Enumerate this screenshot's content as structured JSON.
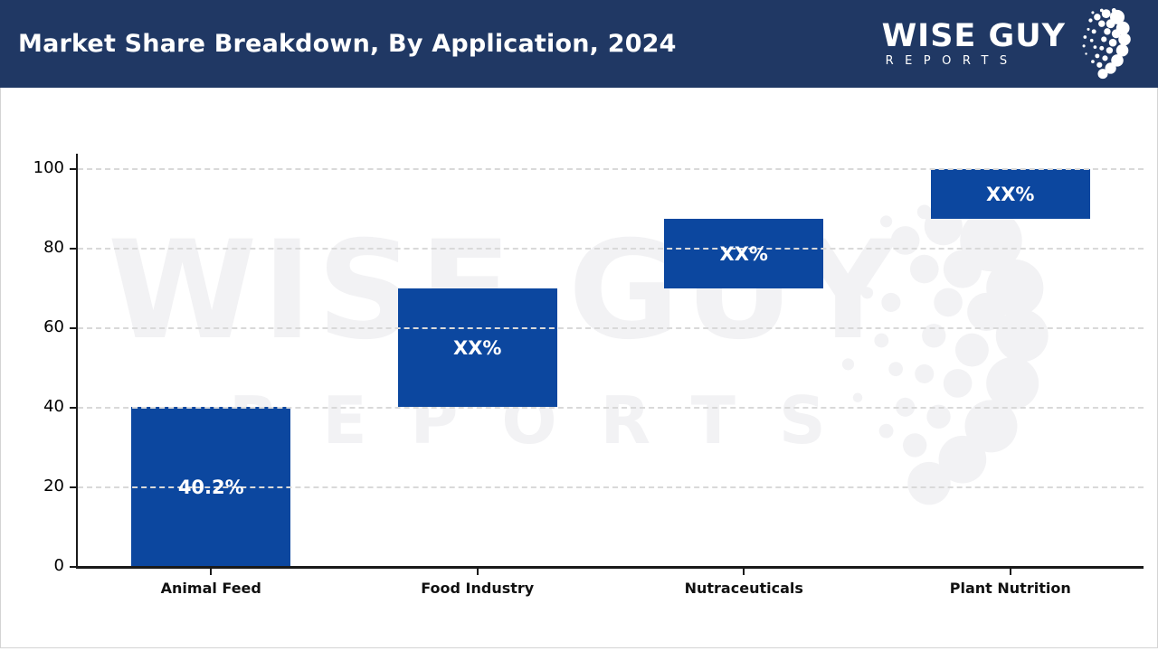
{
  "header": {
    "title": "Market Share Breakdown, By Application, 2024",
    "logo": {
      "line1": "WISE GUY",
      "line2": "REPORTS"
    }
  },
  "watermark": {
    "line1": "WISE GUY",
    "line2": "REPORTS"
  },
  "colors": {
    "header_bg": "#203864",
    "bar": "#0c479f",
    "grid": "#d9d9d9",
    "axis": "#1a1a1a",
    "bar_label": "#ffffff",
    "tick_label": "#000000",
    "watermark": "#f2f2f4"
  },
  "chart_data": {
    "type": "bar",
    "subtype": "waterfall",
    "title": "Market Share Breakdown, By Application, 2024",
    "categories": [
      "Animal Feed",
      "Food Industry",
      "Nutraceuticals",
      "Plant Nutrition"
    ],
    "segments": [
      {
        "category": "Animal Feed",
        "start": 0,
        "end": 40.2,
        "label": "40.2%"
      },
      {
        "category": "Food Industry",
        "start": 40.2,
        "end": 70,
        "label": "XX%"
      },
      {
        "category": "Nutraceuticals",
        "start": 70,
        "end": 87.5,
        "label": "XX%"
      },
      {
        "category": "Plant Nutrition",
        "start": 87.5,
        "end": 100,
        "label": "XX%"
      }
    ],
    "yticks": [
      0,
      20,
      40,
      60,
      80,
      100
    ],
    "ylim": [
      0,
      104
    ],
    "xlabel": "",
    "ylabel": "",
    "grid": "horizontal-dashed",
    "legend": "none",
    "bar_color": "#0c479f"
  }
}
